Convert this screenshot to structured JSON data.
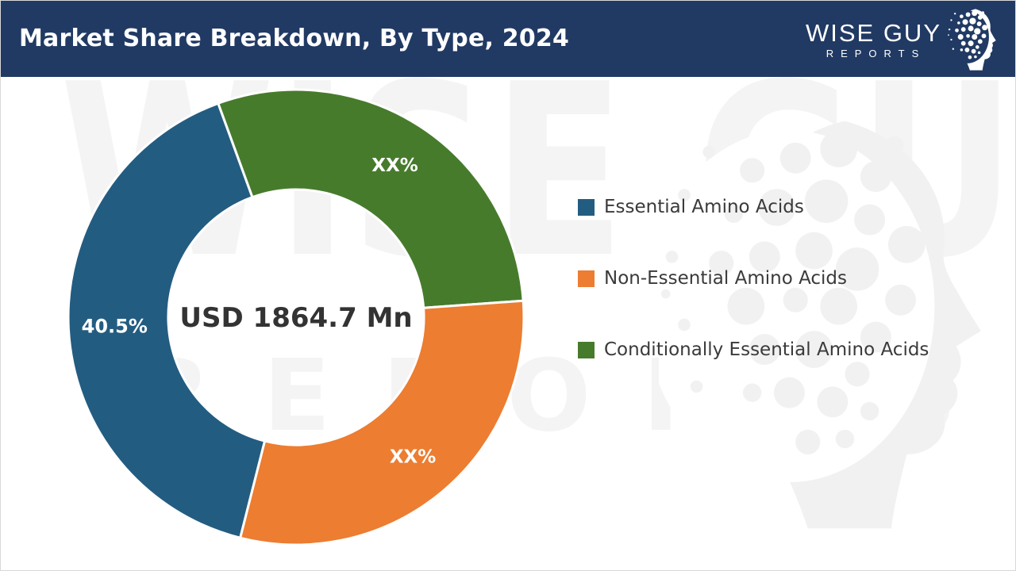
{
  "header": {
    "title": "Market Share Breakdown, By Type, 2024",
    "background": "#213A64",
    "logo": {
      "line1": "WISE GUY",
      "line2": "REPORTS"
    }
  },
  "watermark": {
    "line1": "WISE GUY",
    "line2": "REPORTS"
  },
  "chart_data": {
    "type": "pie",
    "subtype": "donut",
    "title": "Market Share Breakdown, By Type, 2024",
    "center_label": "USD 1864.7 Mn",
    "legend_position": "right",
    "start_angle_deg_from_top": 340,
    "direction": "clockwise",
    "draw_order": [
      2,
      1,
      0
    ],
    "segments": [
      {
        "label": "Essential Amino Acids",
        "display_value": "40.5%",
        "value": 40.5,
        "color": "#235C81"
      },
      {
        "label": "Non-Essential Amino Acids",
        "display_value": "XX%",
        "value": 30.1,
        "color": "#EC7D31"
      },
      {
        "label": "Conditionally Essential Amino Acids",
        "display_value": "XX%",
        "value": 29.4,
        "color": "#477B2C"
      }
    ]
  }
}
